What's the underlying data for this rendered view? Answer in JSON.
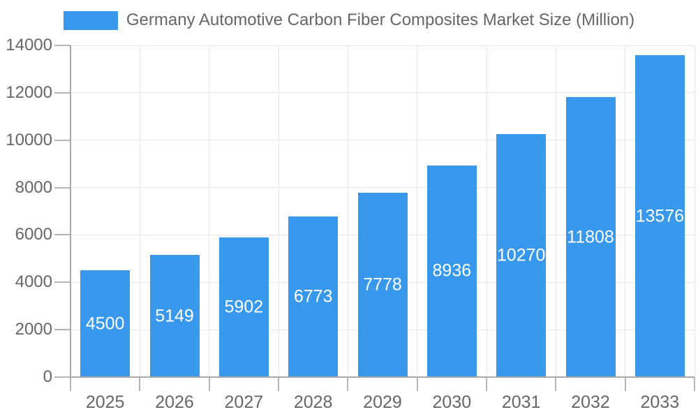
{
  "chart_data": {
    "type": "bar",
    "title": "Germany Automotive Carbon Fiber Composites Market Size (Million)",
    "categories": [
      "2025",
      "2026",
      "2027",
      "2028",
      "2029",
      "2030",
      "2031",
      "2032",
      "2033"
    ],
    "values": [
      4500,
      5149,
      5902,
      6773,
      7778,
      8936,
      10270,
      11808,
      13576
    ],
    "xlabel": "",
    "ylabel": "",
    "ylim": [
      0,
      14000
    ],
    "yticks": [
      0,
      2000,
      4000,
      6000,
      8000,
      10000,
      12000,
      14000
    ],
    "grid": true,
    "legend_position": "top",
    "colors": {
      "bar": "#3899EC",
      "bar_label": "#FFFFFF",
      "axis_text": "#666666",
      "axis_line": "#A9A9A9",
      "tick_line": "#B5B5B5",
      "gridline": "#E6E6E6",
      "background": "#FFFFFF"
    }
  }
}
